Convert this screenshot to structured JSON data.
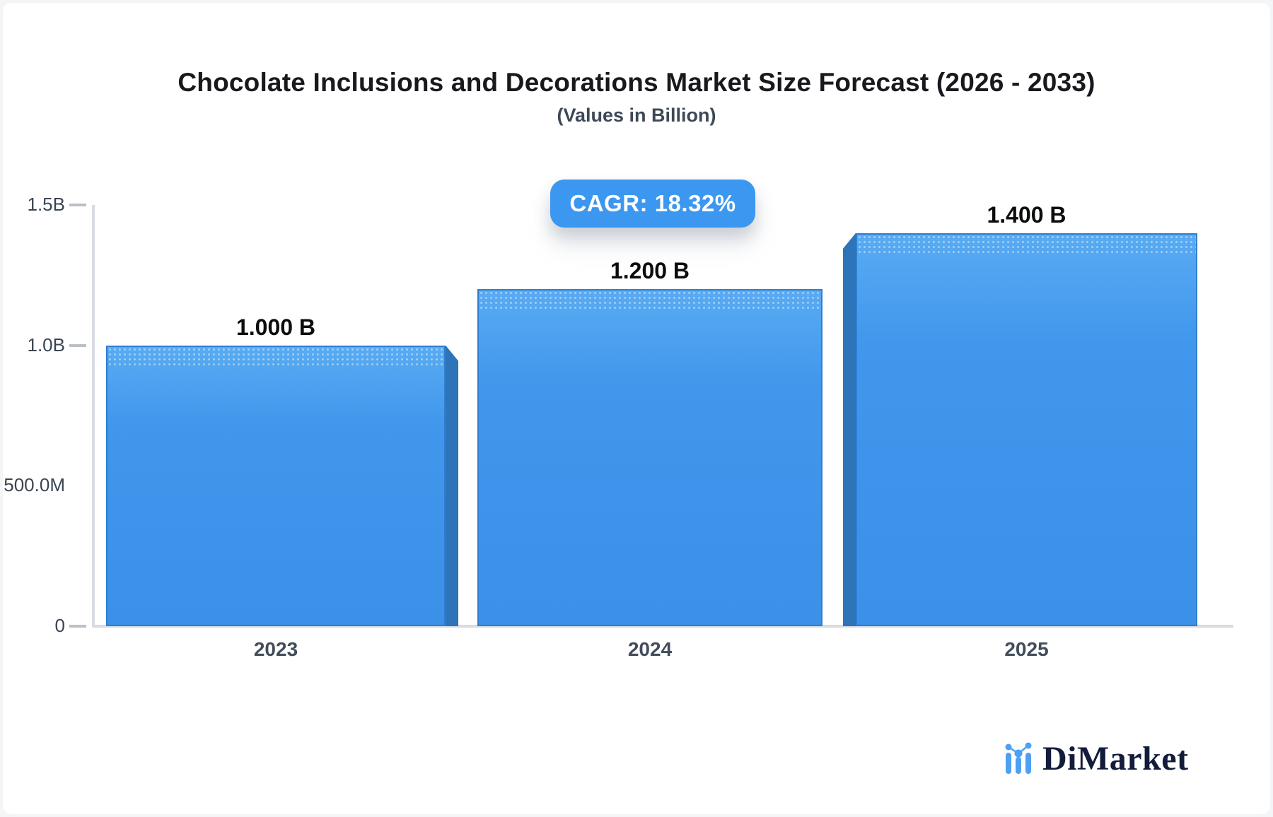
{
  "title": "Chocolate Inclusions and Decorations Market Size Forecast (2026 - 2033)",
  "subtitle": "(Values in Billion)",
  "cagr_badge": "CAGR: 18.32%",
  "logo": {
    "text": "DiMarket",
    "icon": "mini-bar-chart-icon"
  },
  "chart_data": {
    "type": "bar",
    "title": "Chocolate Inclusions and Decorations Market Size Forecast (2026 - 2033)",
    "subtitle": "(Values in Billion)",
    "unit": "Billion",
    "categories": [
      "2023",
      "2024",
      "2025"
    ],
    "values": [
      1.0,
      1.2,
      1.4
    ],
    "value_labels": [
      "1.000 B",
      "1.200 B",
      "1.400 B"
    ],
    "cagr_percent": 18.32,
    "xlabel": "",
    "ylabel": "",
    "ylim": [
      0,
      1.5
    ],
    "grid": false,
    "legend_position": "none",
    "yticks": [
      {
        "label": "1.5B",
        "value": 1.5,
        "dash": true
      },
      {
        "label": "1.0B",
        "value": 1.0,
        "dash": true
      },
      {
        "label": "500.0M",
        "value": 0.5,
        "dash": false
      },
      {
        "label": "0",
        "value": 0.0,
        "dash": true
      }
    ],
    "bar_shadow_sides": [
      "right",
      "none",
      "left"
    ],
    "colors": {
      "bar_top": "#59abf2",
      "bar_bottom": "#3b90e7",
      "bar_border": "#2e7fd2",
      "bar_3d_side": "#2e74b9",
      "badge_blue": "#3b97ef",
      "axis_gray": "#d8dce1",
      "tick_text": "#3b4553",
      "logo_navy": "#131c3b",
      "logo_blue": "#4da0f4"
    }
  }
}
